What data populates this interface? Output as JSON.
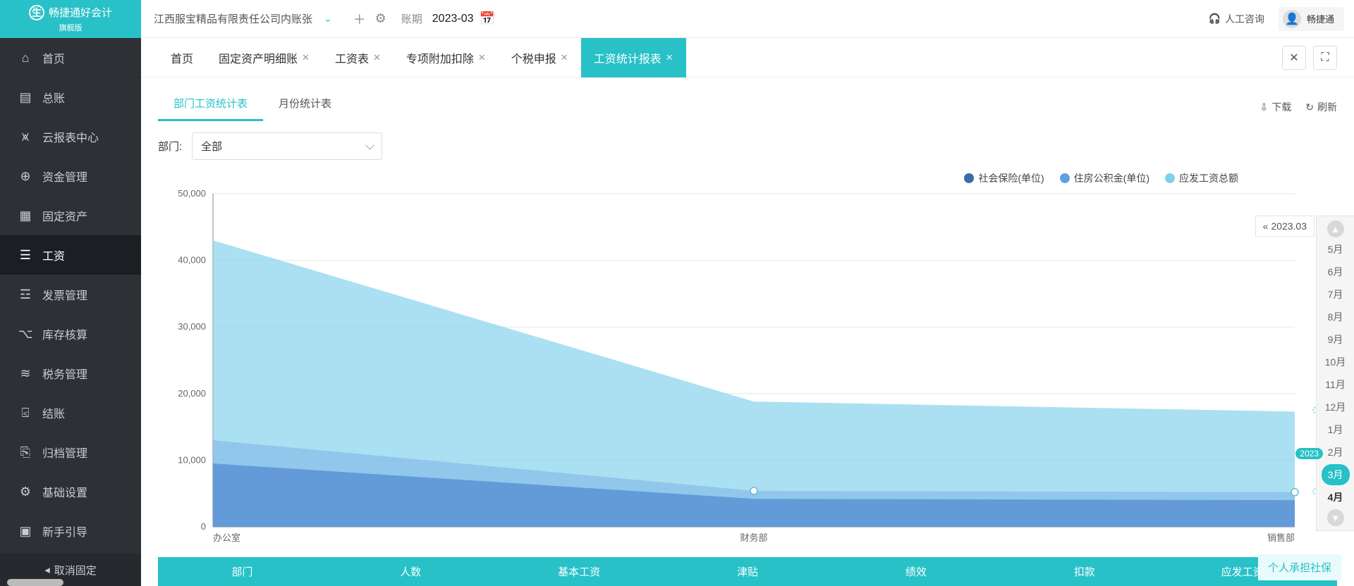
{
  "brand": {
    "name": "畅捷通好会计",
    "edition": "旗舰版",
    "logo_glyph": "生"
  },
  "header": {
    "company_name": "江西服宝精品有限责任公司内账张",
    "period_label": "账期",
    "period_value": "2023-03",
    "support_label": "人工咨询",
    "user_name": "畅捷通"
  },
  "sidebar": {
    "items": [
      {
        "icon": "home",
        "label": "首页"
      },
      {
        "icon": "ledger",
        "label": "总账"
      },
      {
        "icon": "report",
        "label": "云报表中心"
      },
      {
        "icon": "funds",
        "label": "资金管理"
      },
      {
        "icon": "asset",
        "label": "固定资产"
      },
      {
        "icon": "salary",
        "label": "工资"
      },
      {
        "icon": "invoice",
        "label": "发票管理"
      },
      {
        "icon": "stock",
        "label": "库存核算"
      },
      {
        "icon": "tax",
        "label": "税务管理"
      },
      {
        "icon": "close",
        "label": "结账"
      },
      {
        "icon": "archive",
        "label": "归档管理"
      },
      {
        "icon": "settings",
        "label": "基础设置"
      },
      {
        "icon": "guide",
        "label": "新手引导"
      }
    ],
    "active_index": 5,
    "footer_label": "取消固定"
  },
  "tabs": {
    "items": [
      {
        "label": "首页",
        "closable": false
      },
      {
        "label": "固定资产明细账",
        "closable": true
      },
      {
        "label": "工资表",
        "closable": true
      },
      {
        "label": "专项附加扣除",
        "closable": true
      },
      {
        "label": "个税申报",
        "closable": true
      },
      {
        "label": "工资统计报表",
        "closable": true
      }
    ],
    "active_index": 5
  },
  "subtabs": {
    "items": [
      "部门工资统计表",
      "月份统计表"
    ],
    "active_index": 0,
    "download_label": "下载",
    "refresh_label": "刷新"
  },
  "filter": {
    "dept_label": "部门:",
    "dept_value": "全部"
  },
  "chart": {
    "type": "area",
    "categories": [
      "办公室",
      "财务部",
      "销售部"
    ],
    "y_ticks": [
      0,
      10000,
      20000,
      30000,
      40000,
      50000
    ],
    "y_tick_labels": [
      "0",
      "10,000",
      "20,000",
      "30,000",
      "40,000",
      "50,000"
    ],
    "ylim": [
      0,
      50000
    ],
    "series": [
      {
        "name": "社会保险(单位)",
        "values": [
          9500,
          4200,
          4000
        ],
        "fill": "#5b93d3",
        "fill_opacity": 0.85,
        "legend_dot": "#3a6ca8"
      },
      {
        "name": "住房公积金(单位)",
        "values": [
          13000,
          5400,
          5200
        ],
        "fill": "#7fb5e8",
        "fill_opacity": 0.6,
        "legend_dot": "#5ea0e0"
      },
      {
        "name": "应发工资总额",
        "values": [
          43000,
          18800,
          17300
        ],
        "fill": "#8ed6ec",
        "fill_opacity": 0.75,
        "legend_dot": "#7fd0e8"
      }
    ],
    "marker_color": "#ffffff",
    "marker_stroke": "#6db8d6",
    "grid_color": "#e6e6e6",
    "axis_color": "#888888",
    "background_color": "#ffffff",
    "label_fontsize": 13,
    "scatter_hint_color": "#8ed6ec"
  },
  "table_header": [
    "部门",
    "人数",
    "基本工资",
    "津贴",
    "绩效",
    "扣款",
    "应发工资合计"
  ],
  "table_scroll_hint": "个人承担社保",
  "month_panel": {
    "current_label": "2023.03",
    "months": [
      "5月",
      "6月",
      "7月",
      "8月",
      "9月",
      "10月",
      "11月",
      "12月",
      "1月",
      "2月",
      "3月",
      "4月"
    ],
    "current_index": 10,
    "bold_index": 11,
    "year_badge": "2023"
  },
  "icons": {
    "home": "⌂",
    "ledger": "▤",
    "report": "⩙",
    "funds": "⊕",
    "asset": "▦",
    "salary": "☰",
    "invoice": "☲",
    "stock": "⌥",
    "tax": "≋",
    "close": "⍃",
    "archive": "⎘",
    "settings": "⚙",
    "guide": "▣"
  }
}
